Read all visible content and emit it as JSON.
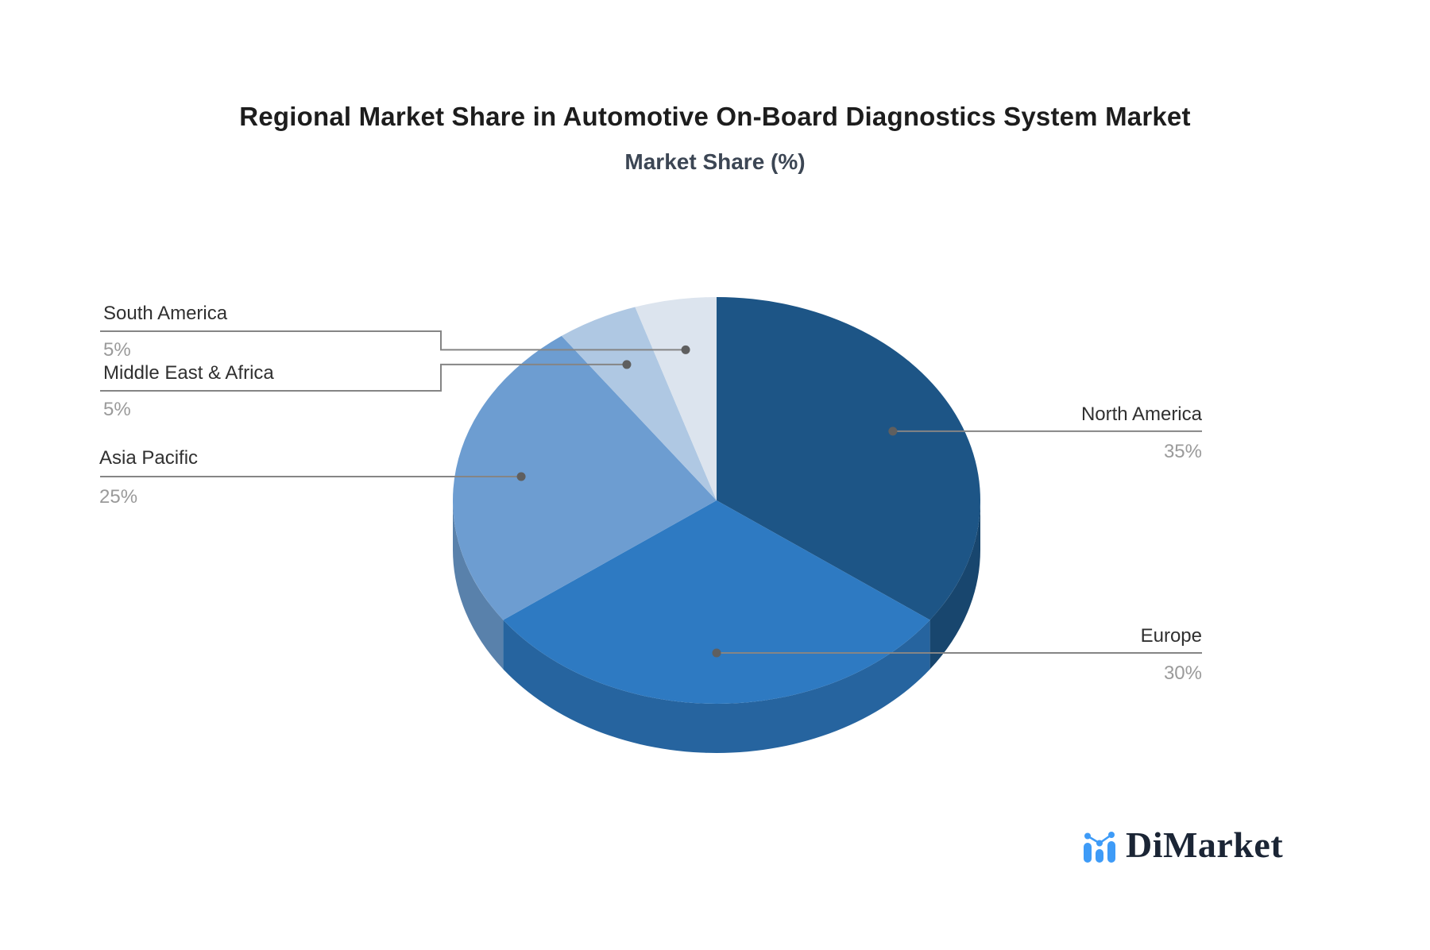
{
  "chart_data": {
    "type": "pie",
    "title": "Regional Market Share in Automotive On-Board Diagnostics System Market",
    "subtitle": "Market Share (%)",
    "unit": "%",
    "effect": "3d",
    "start_angle_deg": 0,
    "direction": "clockwise",
    "legend": "none",
    "label_style": "outside leader lines with region name and percent",
    "slices": [
      {
        "label": "North America",
        "value": 35,
        "pct_label": "35%",
        "color": "#1D5586",
        "label_side": "right"
      },
      {
        "label": "Europe",
        "value": 30,
        "pct_label": "30%",
        "color": "#2E7AC2",
        "label_side": "right"
      },
      {
        "label": "Asia Pacific",
        "value": 25,
        "pct_label": "25%",
        "color": "#6D9DD1",
        "label_side": "left"
      },
      {
        "label": "Middle East & Africa",
        "value": 5,
        "pct_label": "5%",
        "color": "#AFC8E3",
        "label_side": "left"
      },
      {
        "label": "South America",
        "value": 5,
        "pct_label": "5%",
        "color": "#DCE4EE",
        "label_side": "left"
      }
    ]
  },
  "colors": {
    "background": "#FFFFFF",
    "title": "#1D1D1D",
    "subtitle": "#3C4654",
    "slice_label": "#303030",
    "slice_pct": "#9A9A9A",
    "leader_line": "#858585",
    "leader_dot": "#5F5F5F"
  },
  "branding": {
    "logo_text": "DiMarket",
    "logo_text_color": "#1B2535",
    "logo_accent": "#3E9BF7",
    "logo_icon": "bar-chart-trend-icon"
  }
}
